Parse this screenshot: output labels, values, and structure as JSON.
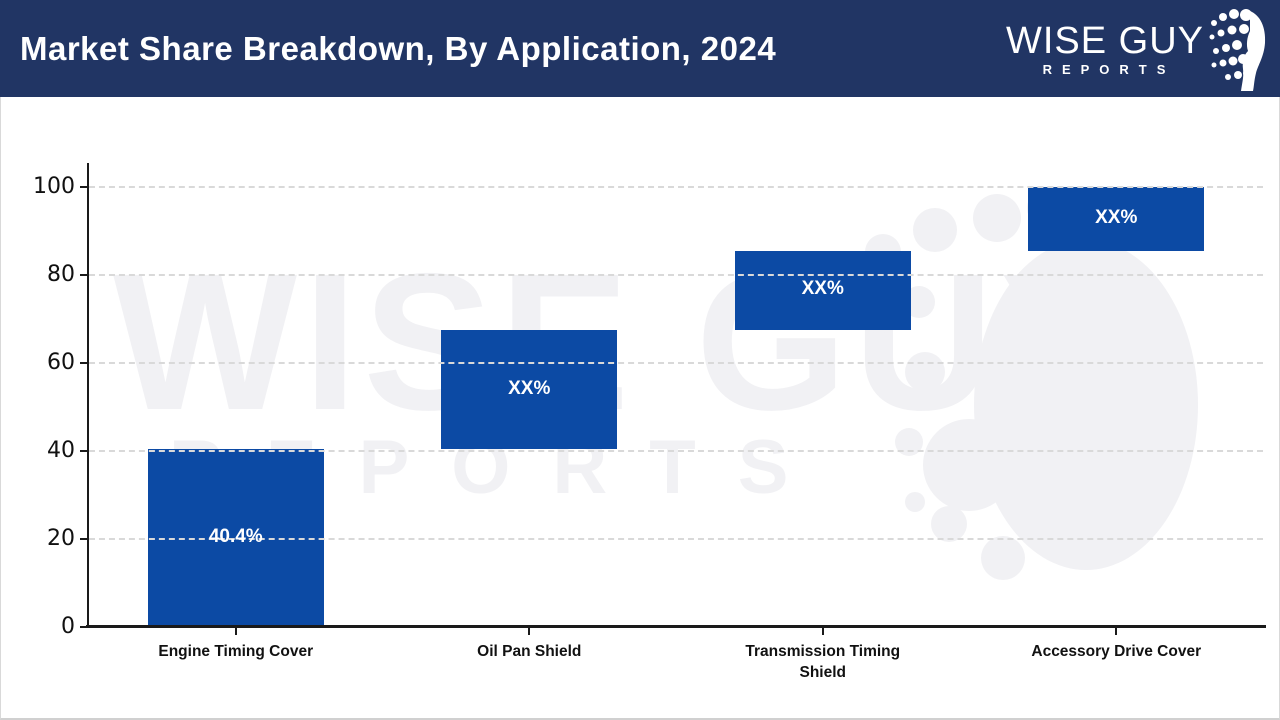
{
  "header": {
    "title": "Market Share Breakdown, By Application, 2024",
    "logo": {
      "wordmark": "WISE GUY",
      "subtext": "REPORTS"
    },
    "bg_color": "#213564"
  },
  "watermark": {
    "wordmark": "WISE GUY",
    "subtext": "REPORTS"
  },
  "chart_data": {
    "type": "bar",
    "subtype": "cumulative_segment_bars",
    "title": "Market Share Breakdown, By Application, 2024",
    "categories": [
      "Engine Timing Cover",
      "Oil Pan Shield",
      "Transmission Timing Shield",
      "Accessory Drive Cover"
    ],
    "segments": [
      {
        "category": "Engine Timing Cover",
        "start": 0,
        "end": 40.4,
        "label": "40.4%"
      },
      {
        "category": "Oil Pan Shield",
        "start": 40.4,
        "end": 67.5,
        "label": "XX%"
      },
      {
        "category": "Transmission Timing Shield",
        "start": 67.5,
        "end": 85.5,
        "label": "XX%"
      },
      {
        "category": "Accessory Drive Cover",
        "start": 85.5,
        "end": 100,
        "label": "XX%"
      }
    ],
    "ylim": [
      0,
      100
    ],
    "yticks": [
      0,
      20,
      40,
      60,
      80,
      100
    ],
    "xlabel": "",
    "ylabel": "",
    "grid": "horizontal-dashed",
    "legend": "none",
    "colors": {
      "bar": "#0c4aa4",
      "bar_label": "#ffffff",
      "grid": "#d9d9d9",
      "axis": "#1a1a1a",
      "tick_label": "#111111",
      "header_bg": "#213564",
      "watermark": "#f1f1f4"
    }
  }
}
